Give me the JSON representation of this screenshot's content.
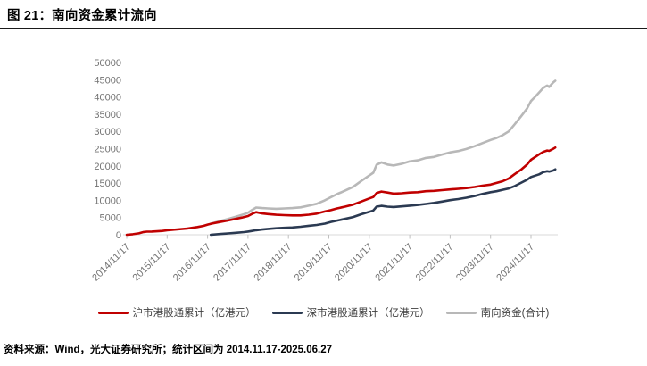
{
  "header": {
    "title": "图 21：南向资金累计流向"
  },
  "footer": {
    "source": "资料来源：Wind，光大证券研究所；统计区间为 2014.11.17-2025.06.27"
  },
  "chart_data": {
    "type": "line",
    "title": "南向资金累计流向",
    "xlabel": "",
    "ylabel": "",
    "grid": false,
    "legend_position": "bottom",
    "y_axis": {
      "min": 0,
      "max": 50000,
      "step": 5000
    },
    "x_ticks": [
      "2014/11/17",
      "2015/11/17",
      "2016/11/17",
      "2017/11/17",
      "2018/11/17",
      "2019/11/17",
      "2020/11/17",
      "2021/11/17",
      "2022/11/17",
      "2023/11/17",
      "2024/11/17"
    ],
    "x_note": "points use t = years after 2014/11/17; data extends to 2025/06/27 (t≈10.6)",
    "colors": {
      "shanghai": "#c00000",
      "shenzhen": "#2b3a52",
      "total": "#b8b8b8"
    },
    "series": [
      {
        "name": "沪市港股通累计（亿港元）",
        "color": "#c00000",
        "points": [
          [
            0,
            0
          ],
          [
            0.15,
            150
          ],
          [
            0.3,
            420
          ],
          [
            0.42,
            800
          ],
          [
            0.5,
            900
          ],
          [
            0.62,
            930
          ],
          [
            0.75,
            1020
          ],
          [
            0.88,
            1120
          ],
          [
            1.0,
            1300
          ],
          [
            1.25,
            1550
          ],
          [
            1.5,
            1820
          ],
          [
            1.75,
            2250
          ],
          [
            1.9,
            2600
          ],
          [
            2.0,
            2950
          ],
          [
            2.1,
            3250
          ],
          [
            2.3,
            3700
          ],
          [
            2.5,
            4150
          ],
          [
            2.7,
            4650
          ],
          [
            2.85,
            5000
          ],
          [
            3.0,
            5450
          ],
          [
            3.1,
            6050
          ],
          [
            3.2,
            6550
          ],
          [
            3.35,
            6200
          ],
          [
            3.5,
            6000
          ],
          [
            3.7,
            5800
          ],
          [
            3.9,
            5700
          ],
          [
            4.1,
            5620
          ],
          [
            4.3,
            5630
          ],
          [
            4.5,
            5820
          ],
          [
            4.7,
            6150
          ],
          [
            4.9,
            6750
          ],
          [
            5.05,
            7150
          ],
          [
            5.2,
            7650
          ],
          [
            5.4,
            8150
          ],
          [
            5.6,
            8750
          ],
          [
            5.8,
            9650
          ],
          [
            6.0,
            10550
          ],
          [
            6.1,
            10950
          ],
          [
            6.18,
            12100
          ],
          [
            6.3,
            12550
          ],
          [
            6.45,
            12250
          ],
          [
            6.6,
            11950
          ],
          [
            6.8,
            12050
          ],
          [
            7.0,
            12250
          ],
          [
            7.2,
            12350
          ],
          [
            7.4,
            12650
          ],
          [
            7.6,
            12750
          ],
          [
            7.8,
            12950
          ],
          [
            8.0,
            13150
          ],
          [
            8.2,
            13350
          ],
          [
            8.4,
            13550
          ],
          [
            8.6,
            13850
          ],
          [
            8.8,
            14250
          ],
          [
            9.0,
            14550
          ],
          [
            9.15,
            15050
          ],
          [
            9.3,
            15550
          ],
          [
            9.45,
            16350
          ],
          [
            9.6,
            17650
          ],
          [
            9.75,
            18850
          ],
          [
            9.9,
            20350
          ],
          [
            10.0,
            21750
          ],
          [
            10.1,
            22550
          ],
          [
            10.2,
            23350
          ],
          [
            10.3,
            24050
          ],
          [
            10.4,
            24450
          ],
          [
            10.45,
            24350
          ],
          [
            10.55,
            24950
          ],
          [
            10.6,
            25300
          ]
        ]
      },
      {
        "name": "深市港股通累计（亿港元）",
        "color": "#2b3a52",
        "points": [
          [
            2.08,
            0
          ],
          [
            2.3,
            200
          ],
          [
            2.5,
            380
          ],
          [
            2.7,
            580
          ],
          [
            2.9,
            780
          ],
          [
            3.0,
            920
          ],
          [
            3.1,
            1120
          ],
          [
            3.2,
            1320
          ],
          [
            3.35,
            1520
          ],
          [
            3.5,
            1720
          ],
          [
            3.7,
            1900
          ],
          [
            3.9,
            2020
          ],
          [
            4.1,
            2120
          ],
          [
            4.3,
            2320
          ],
          [
            4.5,
            2620
          ],
          [
            4.7,
            2850
          ],
          [
            4.9,
            3250
          ],
          [
            5.05,
            3720
          ],
          [
            5.2,
            4120
          ],
          [
            5.4,
            4620
          ],
          [
            5.6,
            5150
          ],
          [
            5.8,
            5950
          ],
          [
            6.0,
            6650
          ],
          [
            6.1,
            7050
          ],
          [
            6.18,
            8150
          ],
          [
            6.3,
            8400
          ],
          [
            6.45,
            8150
          ],
          [
            6.6,
            8050
          ],
          [
            6.8,
            8250
          ],
          [
            7.0,
            8450
          ],
          [
            7.2,
            8650
          ],
          [
            7.4,
            8950
          ],
          [
            7.6,
            9250
          ],
          [
            7.8,
            9650
          ],
          [
            8.0,
            10050
          ],
          [
            8.2,
            10350
          ],
          [
            8.4,
            10750
          ],
          [
            8.6,
            11250
          ],
          [
            8.8,
            11850
          ],
          [
            9.0,
            12350
          ],
          [
            9.15,
            12650
          ],
          [
            9.3,
            13050
          ],
          [
            9.45,
            13450
          ],
          [
            9.6,
            14150
          ],
          [
            9.75,
            15050
          ],
          [
            9.9,
            15950
          ],
          [
            10.0,
            16750
          ],
          [
            10.1,
            17150
          ],
          [
            10.2,
            17550
          ],
          [
            10.3,
            18150
          ],
          [
            10.4,
            18450
          ],
          [
            10.45,
            18350
          ],
          [
            10.55,
            18650
          ],
          [
            10.6,
            19000
          ]
        ]
      },
      {
        "name": "南向资金(合计)",
        "color": "#b8b8b8",
        "points": [
          [
            2.08,
            3250
          ],
          [
            2.3,
            3950
          ],
          [
            2.5,
            4550
          ],
          [
            2.7,
            5250
          ],
          [
            2.9,
            5950
          ],
          [
            3.0,
            6400
          ],
          [
            3.1,
            7200
          ],
          [
            3.2,
            7900
          ],
          [
            3.35,
            7750
          ],
          [
            3.5,
            7650
          ],
          [
            3.7,
            7550
          ],
          [
            3.9,
            7650
          ],
          [
            4.1,
            7750
          ],
          [
            4.3,
            7950
          ],
          [
            4.5,
            8450
          ],
          [
            4.7,
            9000
          ],
          [
            4.9,
            10000
          ],
          [
            5.05,
            10900
          ],
          [
            5.2,
            11800
          ],
          [
            5.4,
            12800
          ],
          [
            5.6,
            13900
          ],
          [
            5.8,
            15600
          ],
          [
            6.0,
            17200
          ],
          [
            6.1,
            18000
          ],
          [
            6.18,
            20300
          ],
          [
            6.3,
            21000
          ],
          [
            6.45,
            20400
          ],
          [
            6.6,
            20100
          ],
          [
            6.8,
            20600
          ],
          [
            7.0,
            21300
          ],
          [
            7.2,
            21600
          ],
          [
            7.4,
            22300
          ],
          [
            7.6,
            22600
          ],
          [
            7.8,
            23300
          ],
          [
            8.0,
            23900
          ],
          [
            8.2,
            24300
          ],
          [
            8.4,
            24900
          ],
          [
            8.6,
            25700
          ],
          [
            8.8,
            26600
          ],
          [
            9.0,
            27500
          ],
          [
            9.15,
            28100
          ],
          [
            9.3,
            28900
          ],
          [
            9.45,
            30000
          ],
          [
            9.6,
            32100
          ],
          [
            9.75,
            34300
          ],
          [
            9.9,
            36600
          ],
          [
            10.0,
            38800
          ],
          [
            10.1,
            40000
          ],
          [
            10.2,
            41300
          ],
          [
            10.3,
            42600
          ],
          [
            10.4,
            43300
          ],
          [
            10.45,
            42900
          ],
          [
            10.55,
            44200
          ],
          [
            10.6,
            44700
          ]
        ]
      }
    ]
  }
}
